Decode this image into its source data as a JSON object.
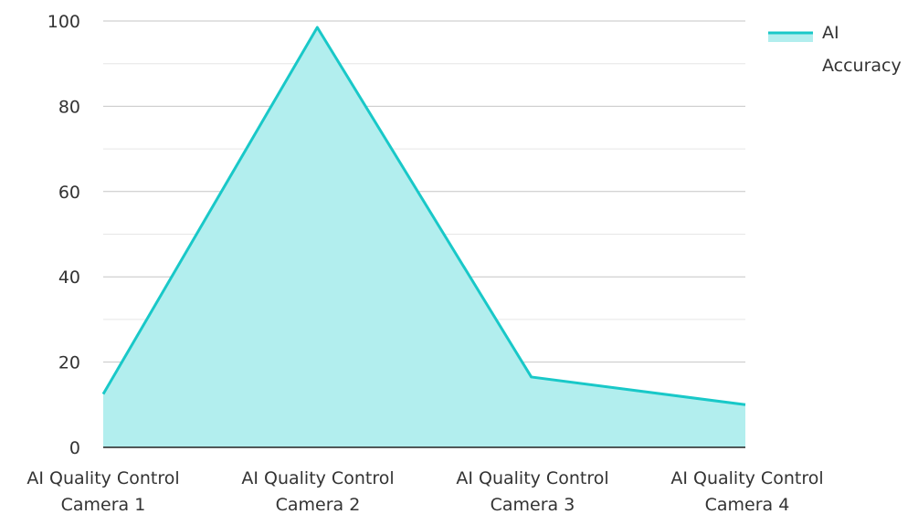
{
  "chart_data": {
    "type": "area",
    "categories": [
      [
        "AI Quality Control",
        "Camera 1"
      ],
      [
        "AI Quality Control",
        "Camera 2"
      ],
      [
        "AI Quality Control",
        "Camera 3"
      ],
      [
        "AI Quality Control",
        "Camera 4"
      ]
    ],
    "series": [
      {
        "name": "AI Accuracy",
        "values": [
          12.5,
          98.5,
          16.5,
          10
        ],
        "line_color": "#19c8c8",
        "fill_color": "#b2eeee"
      }
    ],
    "ylim": [
      0,
      100
    ],
    "yticks": [
      "0",
      "20",
      "40",
      "60",
      "80",
      "100"
    ],
    "grid": true,
    "legend": {
      "position": "top-right",
      "label_lines": [
        "AI",
        "Accuracy"
      ]
    },
    "colors": {
      "grid_major": "#c6c6c6",
      "grid_minor": "#e6e6e6",
      "axis": "#222222",
      "text": "#333333"
    }
  }
}
